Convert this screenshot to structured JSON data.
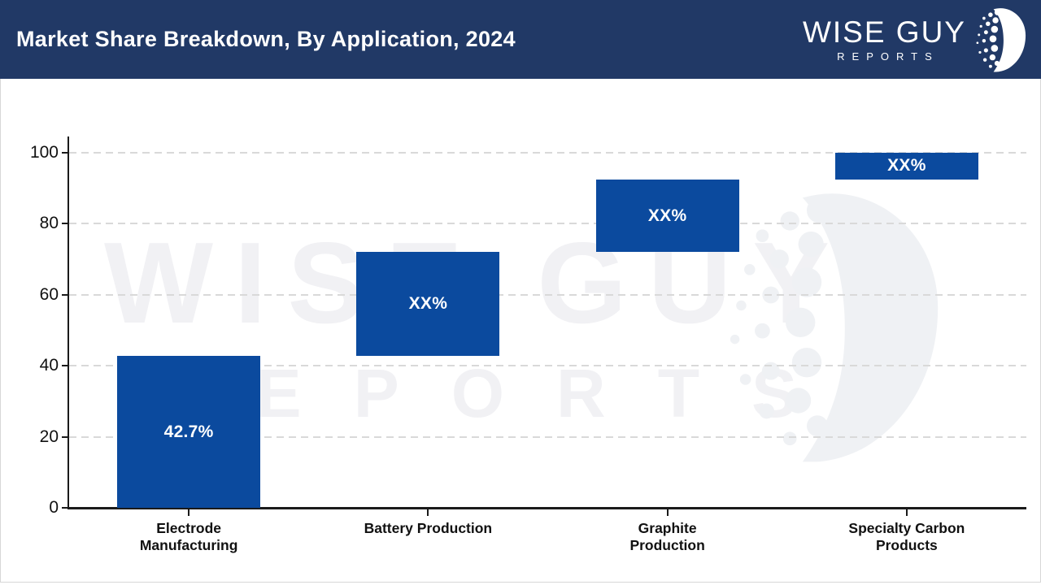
{
  "header": {
    "logo": {
      "line1": "WISE GUY",
      "line2": "REPORTS"
    }
  },
  "watermark": {
    "line1": "WISE GUY",
    "line2": "REPORTS"
  },
  "chart_data": {
    "type": "bar",
    "variant": "waterfall",
    "title": "Market Share Breakdown, By Application, 2024",
    "categories": [
      "Electrode\nManufacturing",
      "Battery Production",
      "Graphite\nProduction",
      "Specialty Carbon\nProducts"
    ],
    "segments": [
      {
        "category": "Electrode Manufacturing",
        "start": 0,
        "end": 42.7,
        "value": 42.7,
        "label": "42.7%"
      },
      {
        "category": "Battery Production",
        "start": 42.7,
        "end": 72.0,
        "value": 29.3,
        "label": "XX%"
      },
      {
        "category": "Graphite Production",
        "start": 72.0,
        "end": 92.3,
        "value": 20.3,
        "label": "XX%"
      },
      {
        "category": "Specialty Carbon Products",
        "start": 92.3,
        "end": 100,
        "value": 7.7,
        "label": "XX%"
      }
    ],
    "xlabel": "",
    "ylabel": "",
    "yticks": [
      0,
      20,
      40,
      60,
      80,
      100
    ],
    "ylim": [
      0,
      105
    ],
    "grid": {
      "horizontal": true,
      "style": "dashed",
      "color": "#d9d9d9"
    },
    "legend": null,
    "bar_color": "#0b4a9e",
    "bar_label_color": "#ffffff",
    "header_color": "#213966"
  }
}
